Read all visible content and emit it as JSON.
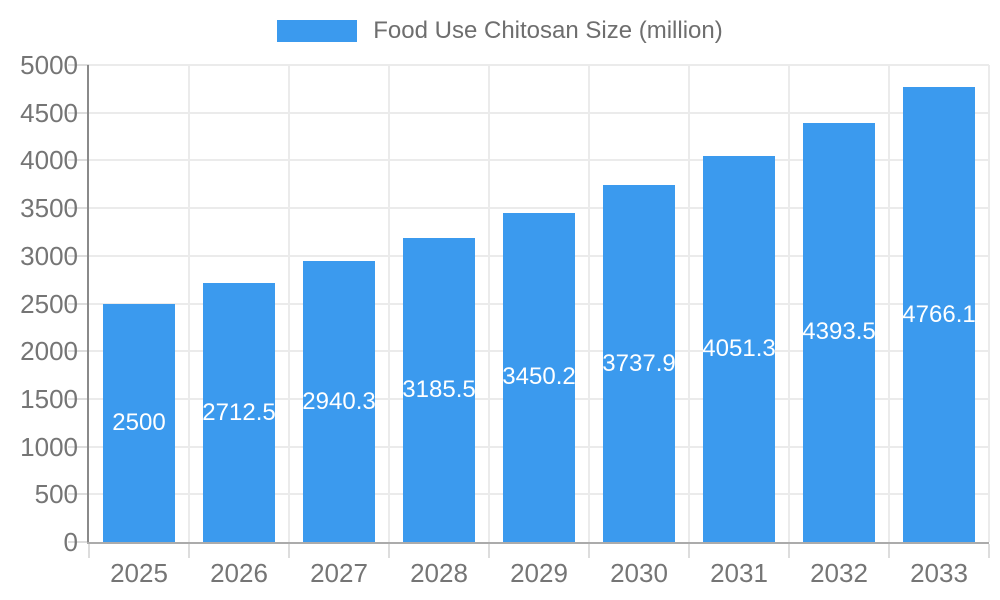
{
  "legend": {
    "label": "Food Use Chitosan Size (million)"
  },
  "chart_data": {
    "type": "bar",
    "title": "Food Use Chitosan Size (million)",
    "series_name": "Food Use Chitosan Size (million)",
    "categories": [
      "2025",
      "2026",
      "2027",
      "2028",
      "2029",
      "2030",
      "2031",
      "2032",
      "2033"
    ],
    "values": [
      2500,
      2712.5,
      2940.3,
      3185.5,
      3450.2,
      3737.9,
      4051.3,
      4393.5,
      4766.1
    ],
    "value_labels": [
      "2500",
      "2712.5",
      "2940.3",
      "3185.5",
      "3450.2",
      "3737.9",
      "4051.3",
      "4393.5",
      "4766.1"
    ],
    "xlabel": "",
    "ylabel": "",
    "ylim": [
      0,
      5000
    ],
    "ytick_step": 500,
    "y_ticks": [
      0,
      500,
      1000,
      1500,
      2000,
      2500,
      3000,
      3500,
      4000,
      4500,
      5000
    ],
    "grid": true,
    "legend_position": "top-center",
    "value_label_position": "inside-center"
  },
  "colors": {
    "bar": "#3B9AEE",
    "grid": "#EBEBEB",
    "tick": "#DDDDDD",
    "axis_y_line": "#8A8A8A",
    "axis_x_line": "#ABABAB",
    "axis_text": "#757575",
    "legend_text": "#6E6E6E",
    "value_text": "#FFFFFF",
    "background": "#FFFFFF"
  }
}
